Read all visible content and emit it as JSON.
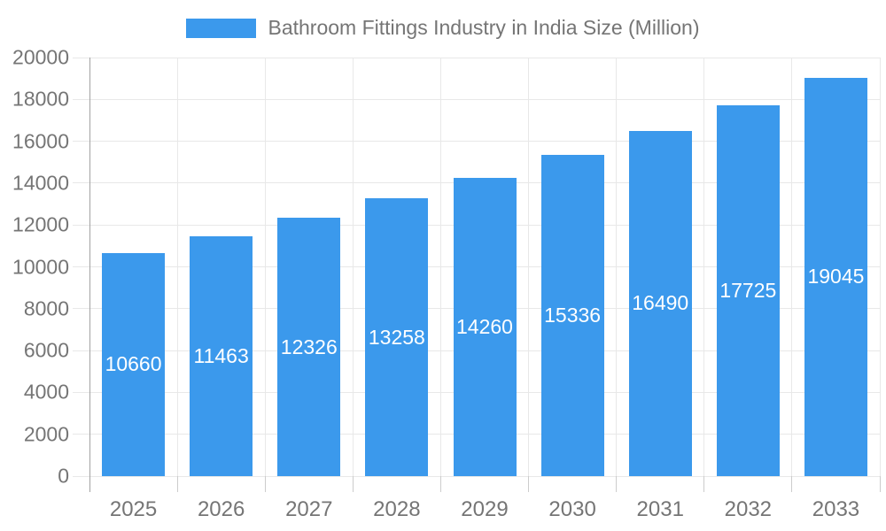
{
  "chart_data": {
    "type": "bar",
    "title": "Bathroom Fittings Industry in India Size (Million)",
    "categories": [
      "2025",
      "2026",
      "2027",
      "2028",
      "2029",
      "2030",
      "2031",
      "2032",
      "2033"
    ],
    "values": [
      10660,
      11463,
      12326,
      13258,
      14260,
      15336,
      16490,
      17725,
      19045
    ],
    "xlabel": "",
    "ylabel": "",
    "ylim": [
      0,
      20000
    ],
    "ytick_step": 2000,
    "grid": true,
    "legend_position": "top",
    "value_labels": "inside-center",
    "colors": {
      "bar": "#3B99EC",
      "gridline": "#e8e8e8",
      "axis_line": "#a3a3a3",
      "tick": "#cccccc",
      "axis_text": "#757575",
      "value_label_text": "#ffffff",
      "background": "#ffffff"
    }
  }
}
